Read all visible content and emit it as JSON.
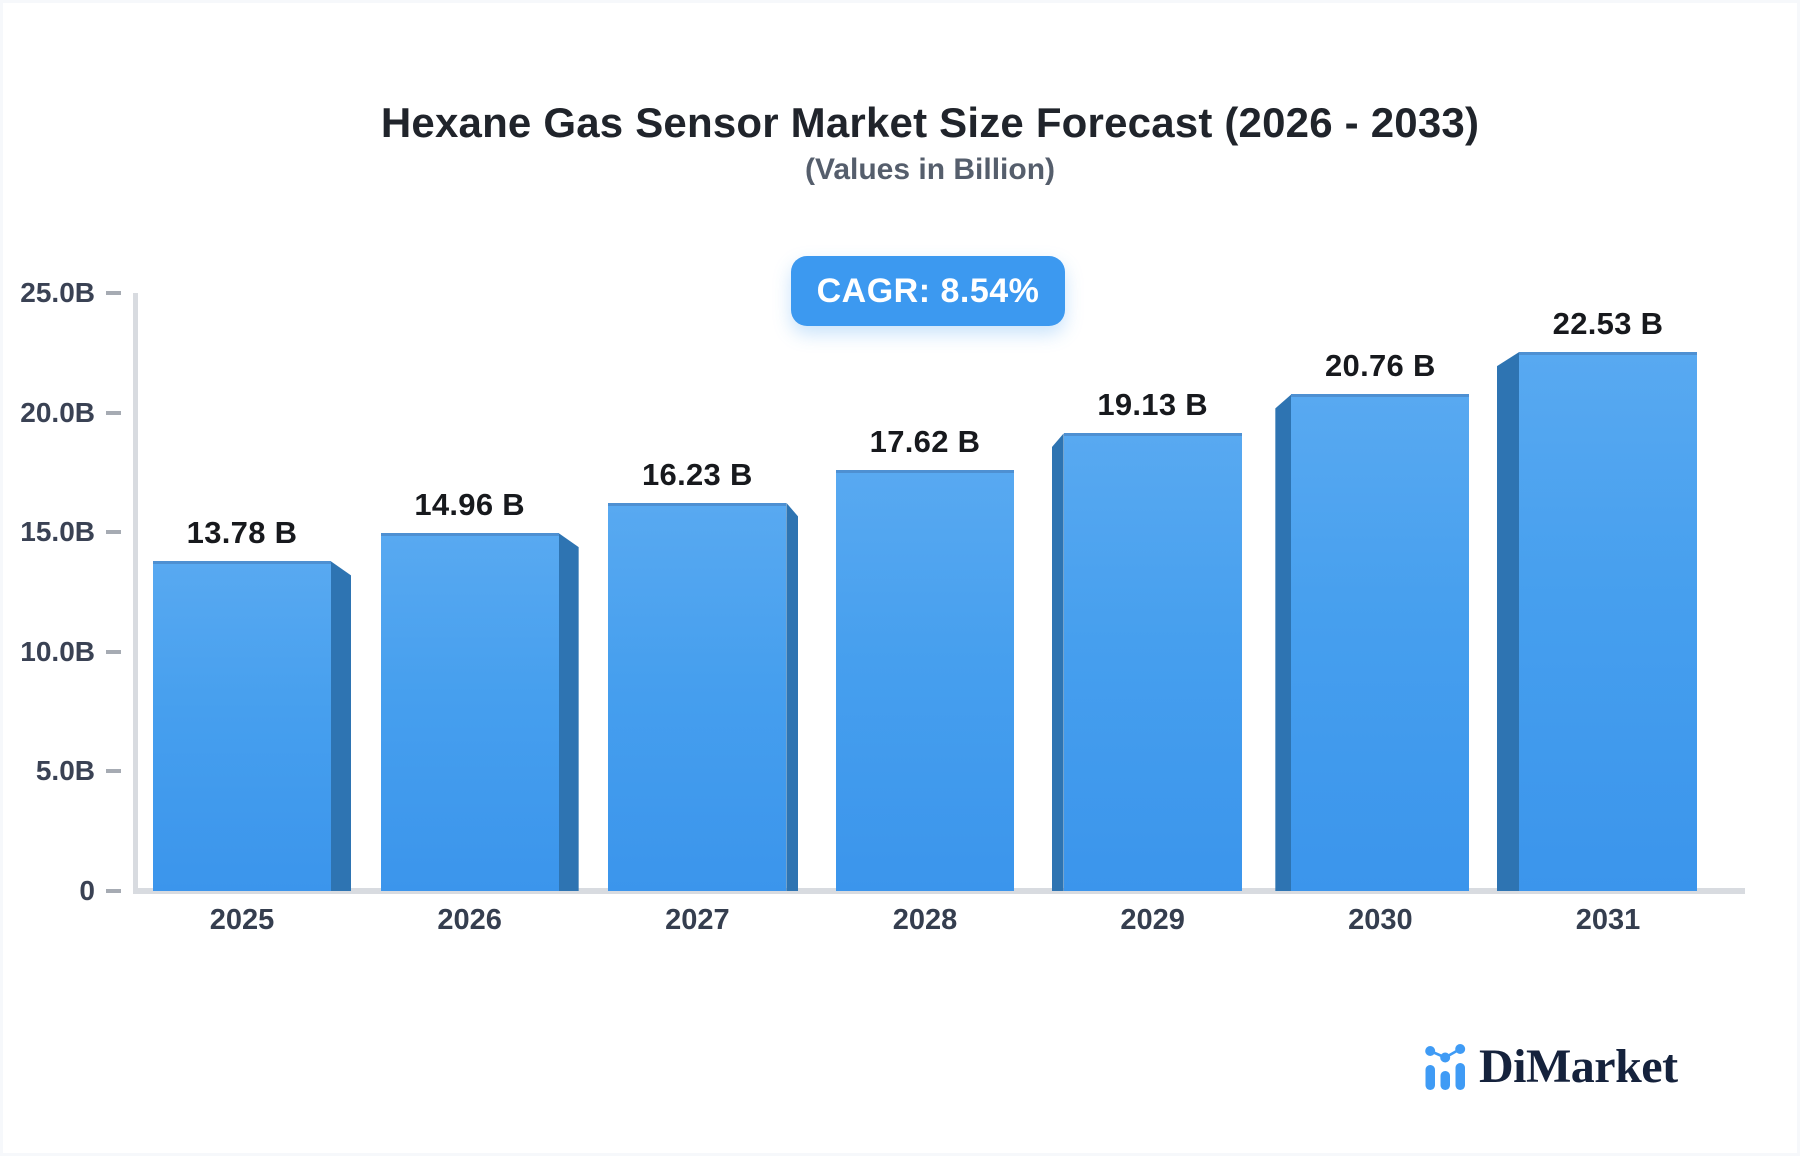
{
  "header": {
    "title": "Hexane Gas Sensor Market Size Forecast (2026 - 2033)",
    "subtitle": "(Values in Billion)",
    "cagr_badge": "CAGR: 8.54%"
  },
  "chart_data": {
    "type": "bar",
    "title": "Hexane Gas Sensor Market Size Forecast (2026 - 2033)",
    "subtitle": "(Values in Billion)",
    "categories": [
      "2025",
      "2026",
      "2027",
      "2028",
      "2029",
      "2030",
      "2031"
    ],
    "values": [
      13.78,
      14.96,
      16.23,
      17.62,
      19.13,
      20.76,
      22.53
    ],
    "value_labels": [
      "13.78 B",
      "14.96 B",
      "16.23 B",
      "17.62 B",
      "19.13 B",
      "20.76 B",
      "22.53 B"
    ],
    "cagr_label": "CAGR: 8.54%",
    "xlabel": "",
    "ylabel": "",
    "ylim": [
      0,
      25
    ],
    "ytick_values": [
      25,
      20,
      15,
      10,
      5,
      0
    ],
    "ytick_labels": [
      "25.0B",
      "20.0B",
      "15.0B",
      "10.0B",
      "5.0B",
      "0"
    ],
    "grid": false,
    "legend": null,
    "bar_style": "3d-extruded, extrusion fans outward from center bar",
    "colors": {
      "bar_face_top": "#58a9f1",
      "bar_face_bottom": "#3b95ec",
      "bar_side": "#2e74b2",
      "badge_background": "#3c99f0",
      "badge_text": "#ffffff",
      "axis_line": "#d8dbe0",
      "tick_mark": "#a6abb3",
      "tick_label": "#3a4254",
      "value_label": "#17191d",
      "title": "#20242b",
      "subtitle": "#555e6c"
    }
  },
  "brand": {
    "name": "DiMarket",
    "icon": "mini-bar-chart-logo-icon",
    "icon_color": "#3f9bf5",
    "text_color": "#15223c"
  }
}
